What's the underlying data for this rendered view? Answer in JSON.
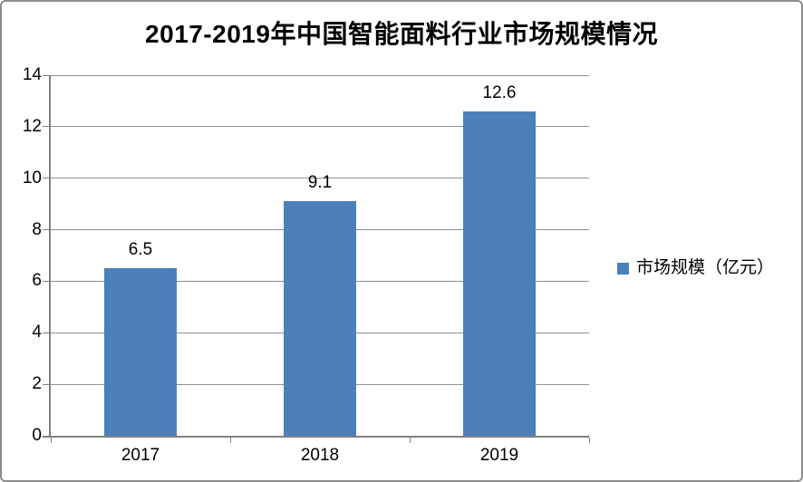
{
  "title": "2017-2019年中国智能面料行业市场规模情况",
  "legend": {
    "label": "市场规模（亿元）"
  },
  "colors": {
    "bar": "#4d80bb",
    "gridline": "#919191",
    "axis": "#808080",
    "frame_border": "#8c8c8c",
    "text": "#000000",
    "background": "#ffffff"
  },
  "chart_data": {
    "type": "bar",
    "title": "2017-2019年中国智能面料行业市场规模情况",
    "categories": [
      "2017",
      "2018",
      "2019"
    ],
    "series": [
      {
        "name": "市场规模（亿元）",
        "values": [
          6.5,
          9.1,
          12.6
        ],
        "color": "#4d80bb"
      }
    ],
    "data_labels": [
      "6.5",
      "9.1",
      "12.6"
    ],
    "xlabel": "",
    "ylabel": "",
    "ylim": [
      0,
      14
    ],
    "ytick_step": 2,
    "yticks": [
      0,
      2,
      4,
      6,
      8,
      10,
      12,
      14
    ],
    "grid": "horizontal",
    "legend_position": "right"
  }
}
